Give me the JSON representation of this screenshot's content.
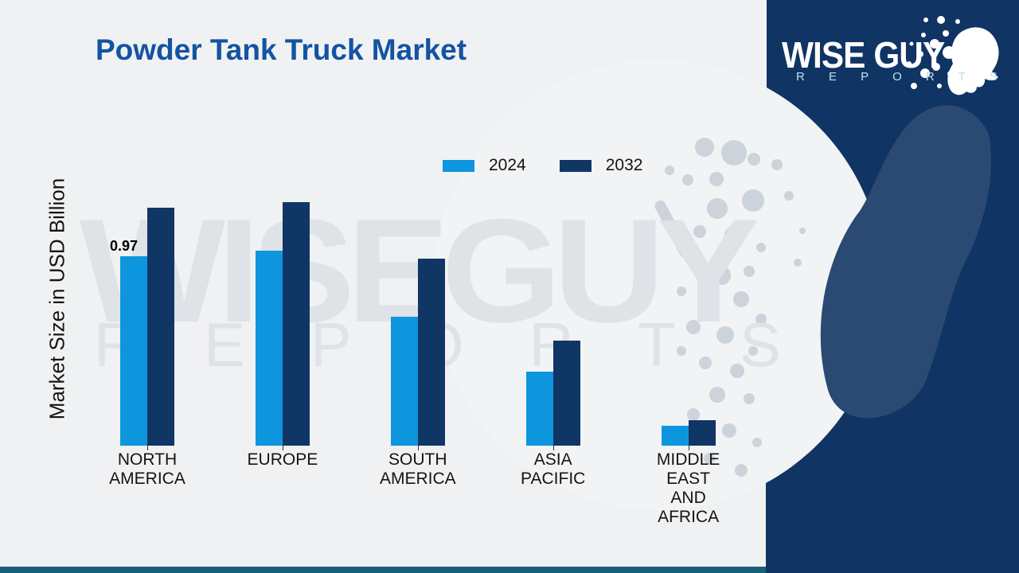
{
  "title": "Powder Tank Truck Market",
  "watermark": {
    "line1": "WISEGUY",
    "line2": "R E P O R T S"
  },
  "logo": {
    "line1": "WISE GUY",
    "line2": "R E P O R T S"
  },
  "legend": [
    {
      "label": "2024",
      "color": "#0d96dd"
    },
    {
      "label": "2032",
      "color": "#103665"
    }
  ],
  "annotation": {
    "text": "0.97"
  },
  "chart_data": {
    "type": "bar",
    "categories": [
      "NORTH AMERICA",
      "EUROPE",
      "SOUTH AMERICA",
      "ASIA PACIFIC",
      "MIDDLE EAST AND AFRICA"
    ],
    "series": [
      {
        "name": "2024",
        "color": "#0d96dd",
        "values": [
          0.97,
          1.0,
          0.66,
          0.38,
          0.1
        ]
      },
      {
        "name": "2032",
        "color": "#103665",
        "values": [
          1.22,
          1.25,
          0.96,
          0.54,
          0.13
        ]
      }
    ],
    "title": "Powder Tank Truck Market",
    "xlabel": "",
    "ylabel": "Market Size in USD Billion",
    "ylim": [
      0,
      1.4
    ],
    "grid": false,
    "legend_position": "top",
    "annotations": [
      {
        "series": "2024",
        "category": "NORTH AMERICA",
        "text": "0.97"
      }
    ]
  },
  "colors": {
    "title": "#1353a2",
    "background": "#f0f1f2",
    "bottom_strip": "#1b5f7a",
    "logo_shape": "#103463",
    "watermark": "#dfe2e6"
  }
}
